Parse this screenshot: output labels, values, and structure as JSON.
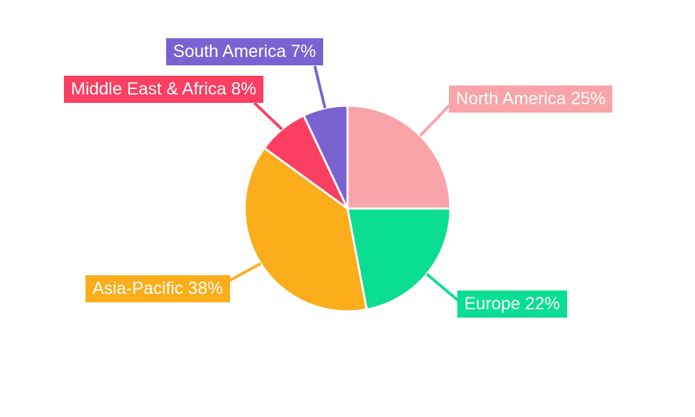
{
  "page": {
    "background_color": "#ffffff"
  },
  "chart_data": {
    "type": "pie",
    "title": "",
    "unit_suffix": "%",
    "direction": "clockwise",
    "start_angle_deg": 0,
    "legend_position": "callout-labels",
    "label_text_color": "#ffffff",
    "slice_gap_color": "#ffffff",
    "slices": [
      {
        "label": "North America",
        "value": 25,
        "display": "North America 25%",
        "color": "#F9A4A8"
      },
      {
        "label": "Europe",
        "value": 22,
        "display": "Europe 22%",
        "color": "#0BDD92"
      },
      {
        "label": "Asia-Pacific",
        "value": 38,
        "display": "Asia-Pacific 38%",
        "color": "#FBAD1B"
      },
      {
        "label": "Middle East & Africa",
        "value": 8,
        "display": "Middle East & Africa 8%",
        "color": "#FA3F62"
      },
      {
        "label": "South America",
        "value": 7,
        "display": "South America 7%",
        "color": "#7B62D1"
      }
    ]
  }
}
